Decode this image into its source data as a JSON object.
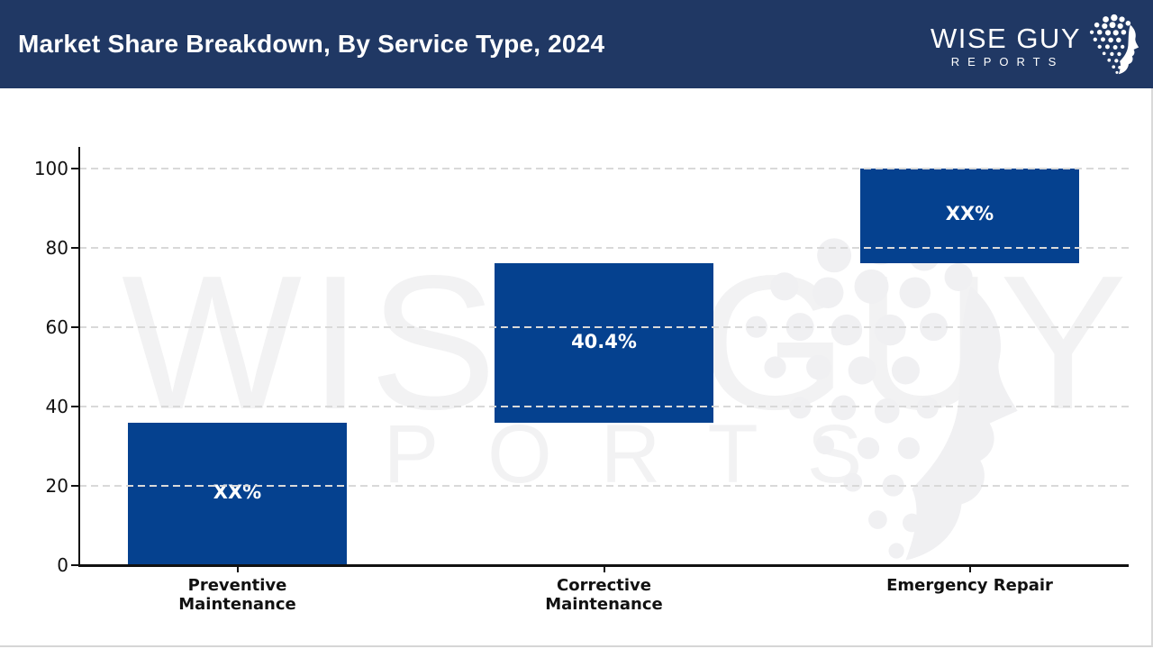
{
  "header": {
    "title": "Market Share Breakdown, By Service Type, 2024",
    "bg_color": "#203864",
    "logo": {
      "name_line": "WISE GUY",
      "sub_line": "REPORTS"
    }
  },
  "watermark": {
    "name_line": "WISE GUY",
    "sub_line": "REPORTS"
  },
  "chart_data": {
    "type": "bar",
    "subtype": "waterfall",
    "title": "Market Share Breakdown, By Service Type, 2024",
    "categories": [
      "Preventive Maintenance",
      "Corrective Maintenance",
      "Emergency Repair"
    ],
    "category_lines": [
      [
        "Preventive",
        "Maintenance"
      ],
      [
        "Corrective",
        "Maintenance"
      ],
      [
        "Emergency Repair"
      ]
    ],
    "segments": [
      {
        "category": "Preventive Maintenance",
        "start": 0,
        "end": 35.8,
        "label": "XX%"
      },
      {
        "category": "Corrective Maintenance",
        "start": 35.8,
        "end": 76.2,
        "label": "40.4%"
      },
      {
        "category": "Emergency Repair",
        "start": 76.2,
        "end": 100,
        "label": "XX%"
      }
    ],
    "bar_labels": [
      "XX%",
      "40.4%",
      "XX%"
    ],
    "values_pct_estimated": [
      35.8,
      40.4,
      23.8
    ],
    "y_ticks": [
      0,
      20,
      40,
      60,
      80,
      100
    ],
    "ylim": [
      0,
      105
    ],
    "xlabel": "",
    "ylabel": "",
    "bar_color": "#05418f",
    "grid": "horizontal-dashed",
    "grid_color": "#d9d9d9",
    "grid_on_top": true,
    "legend": "none"
  }
}
